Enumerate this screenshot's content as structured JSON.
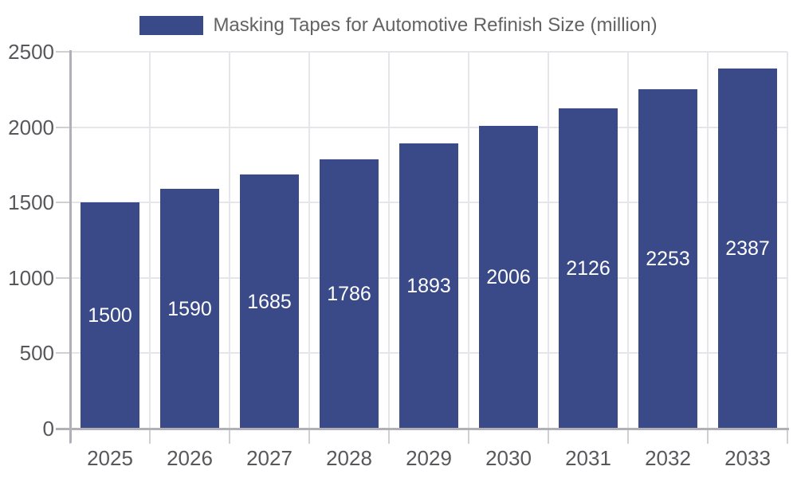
{
  "legend": {
    "label": "Masking Tapes for Automotive Refinish Size (million)"
  },
  "chart_data": {
    "type": "bar",
    "title": "Masking Tapes for Automotive Refinish Size (million)",
    "series_name": "Masking Tapes for Automotive Refinish Size (million)",
    "categories": [
      "2025",
      "2026",
      "2027",
      "2028",
      "2029",
      "2030",
      "2031",
      "2032",
      "2033"
    ],
    "values": [
      1500,
      1590,
      1685,
      1786,
      1893,
      2006,
      2126,
      2253,
      2387
    ],
    "value_labels": [
      "1500",
      "1590",
      "1685",
      "1786",
      "1893",
      "2006",
      "2126",
      "2253",
      "2387"
    ],
    "xlabel": "",
    "ylabel": "",
    "ylim": [
      0,
      2500
    ],
    "yticks": [
      0,
      500,
      1000,
      1500,
      2000,
      2500
    ],
    "grid": true,
    "legend_position": "top",
    "value_label_position": "inside-center"
  },
  "colors": {
    "bar": "#3a4a88",
    "grid": "#e6e6ea",
    "axis": "#b0b0b6",
    "tick": "#cfcfd4",
    "tick_text": "#58585c",
    "legend_text": "#636363",
    "value_text": "#ffffff",
    "background": "#ffffff"
  }
}
